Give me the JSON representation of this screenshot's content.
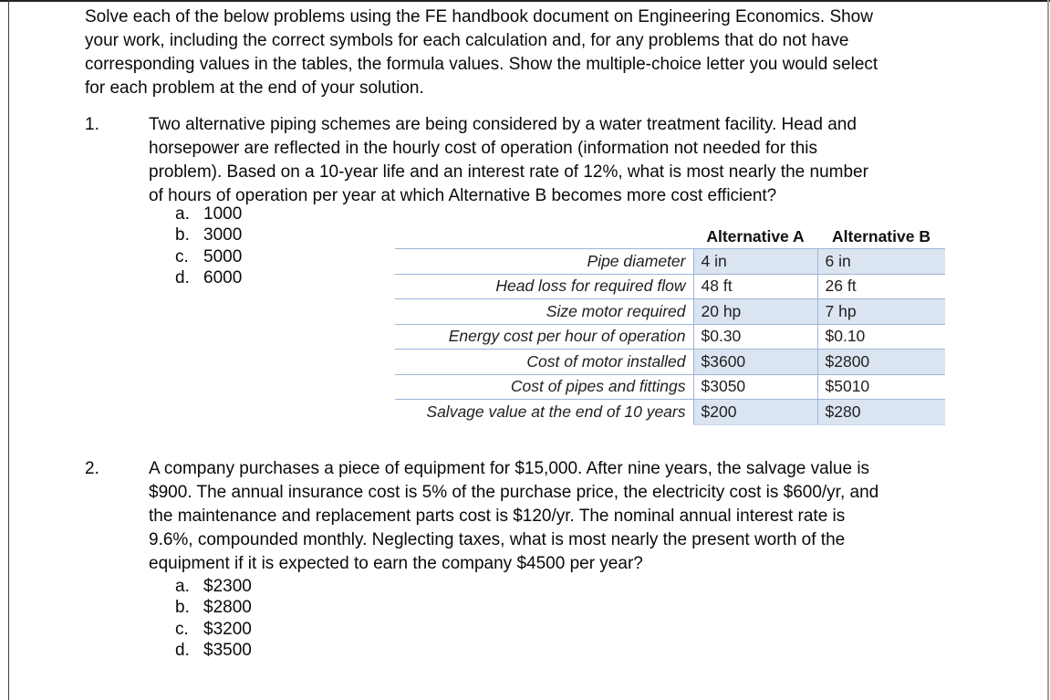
{
  "intro": {
    "lines": [
      "Solve each of the below problems using the FE handbook document on Engineering Economics. Show",
      "your work, including the correct symbols for each calculation and, for any problems that do not have",
      "corresponding values in the tables, the formula values. Show the multiple-choice letter you would select",
      "for each problem at the end of your solution."
    ]
  },
  "problems": [
    {
      "number": "1.",
      "lines": [
        "Two alternative piping schemes are being considered by a water treatment facility. Head and",
        "horsepower are reflected in the hourly cost of operation (information not needed for this",
        "problem). Based on a 10-year life and an interest rate of 12%, what is most nearly the number",
        "of hours of operation per year at which Alternative B becomes more cost efficient?"
      ],
      "choices": [
        {
          "letter": "a.",
          "value": "1000"
        },
        {
          "letter": "b.",
          "value": "3000"
        },
        {
          "letter": "c.",
          "value": "5000"
        },
        {
          "letter": "d.",
          "value": "6000"
        }
      ]
    },
    {
      "number": "2.",
      "lines": [
        "A company purchases a piece of equipment for $15,000. After nine years, the salvage value is",
        "$900. The annual insurance cost is 5% of the purchase price, the electricity cost is $600/yr, and",
        "the maintenance and replacement parts cost is $120/yr. The nominal annual interest rate is",
        "9.6%, compounded monthly. Neglecting taxes, what is most nearly the present worth of the",
        "equipment if it is expected to earn the company $4500 per year?"
      ],
      "choices": [
        {
          "letter": "a.",
          "value": "$2300"
        },
        {
          "letter": "b.",
          "value": "$2800"
        },
        {
          "letter": "c.",
          "value": "$3200"
        },
        {
          "letter": "d.",
          "value": "$3500"
        }
      ]
    }
  ],
  "table": {
    "column_headers": [
      "Alternative A",
      "Alternative B"
    ],
    "rows": [
      {
        "label": "Pipe diameter",
        "a": "4 in",
        "b": "6 in"
      },
      {
        "label": "Head loss for required flow",
        "a": "48 ft",
        "b": "26 ft"
      },
      {
        "label": "Size motor required",
        "a": "20 hp",
        "b": "7 hp"
      },
      {
        "label": "Energy cost per hour of operation",
        "a": "$0.30",
        "b": "$0.10"
      },
      {
        "label": "Cost of motor installed",
        "a": "$3600",
        "b": "$2800"
      },
      {
        "label": "Cost of pipes and fittings",
        "a": "$3050",
        "b": "$5010"
      },
      {
        "label": "Salvage value at the end of 10 years",
        "a": "$200",
        "b": "$280"
      }
    ]
  },
  "colors": {
    "row_shading": "#dbe5f1",
    "table_border": "#9db5d8",
    "page_top_border": "#222222",
    "page_side_border_left": "#3f3f3f",
    "page_side_border_right": "#9e9ea6",
    "text": "#0a0a0a"
  }
}
